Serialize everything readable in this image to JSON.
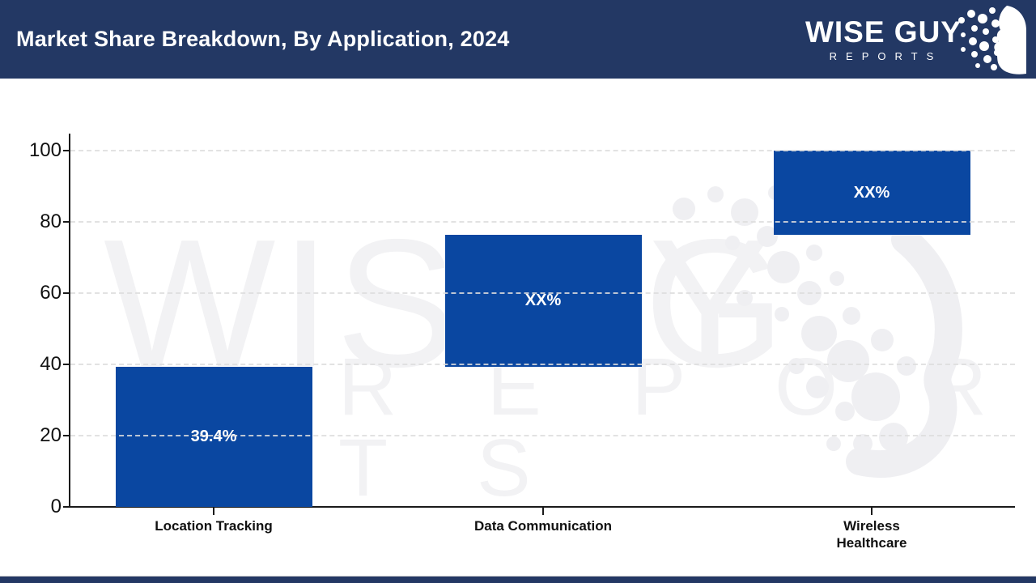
{
  "header": {
    "title": "Market Share Breakdown, By Application, 2024",
    "brand": {
      "line1": "WISE GUY",
      "line2": "REPORTS"
    }
  },
  "watermark": {
    "line1": "WISE G",
    "line1_tail": "Y",
    "line2": "R E P O R T S"
  },
  "colors": {
    "header_bg": "#233864",
    "footer_bg": "#233864",
    "bar": "#0a47a1",
    "bar_label": "#ffffff",
    "axis": "#1a1a1a",
    "gridline": "#dddddd",
    "watermark": "#f2f2f4"
  },
  "chart_data": {
    "type": "bar",
    "subtype": "waterfall",
    "title": "Market Share Breakdown, By Application, 2024",
    "categories": [
      "Location Tracking",
      "Data Communication",
      "Wireless Healthcare"
    ],
    "category_lines": [
      [
        "Location Tracking"
      ],
      [
        "Data Communication"
      ],
      [
        "Wireless",
        "Healthcare"
      ]
    ],
    "segments": [
      {
        "category": "Location Tracking",
        "start": 0,
        "end": 39.4,
        "label": "39.4%"
      },
      {
        "category": "Data Communication",
        "start": 39.4,
        "end": 76.3,
        "label": "XX%"
      },
      {
        "category": "Wireless Healthcare",
        "start": 76.3,
        "end": 100,
        "label": "XX%"
      }
    ],
    "ylim": [
      0,
      100
    ],
    "yticks": [
      0,
      20,
      40,
      60,
      80,
      100
    ],
    "grid": {
      "horizontal": true,
      "style": "dashed"
    },
    "legend": null,
    "bar_labels": [
      "39.4%",
      "XX%",
      "XX%"
    ]
  }
}
